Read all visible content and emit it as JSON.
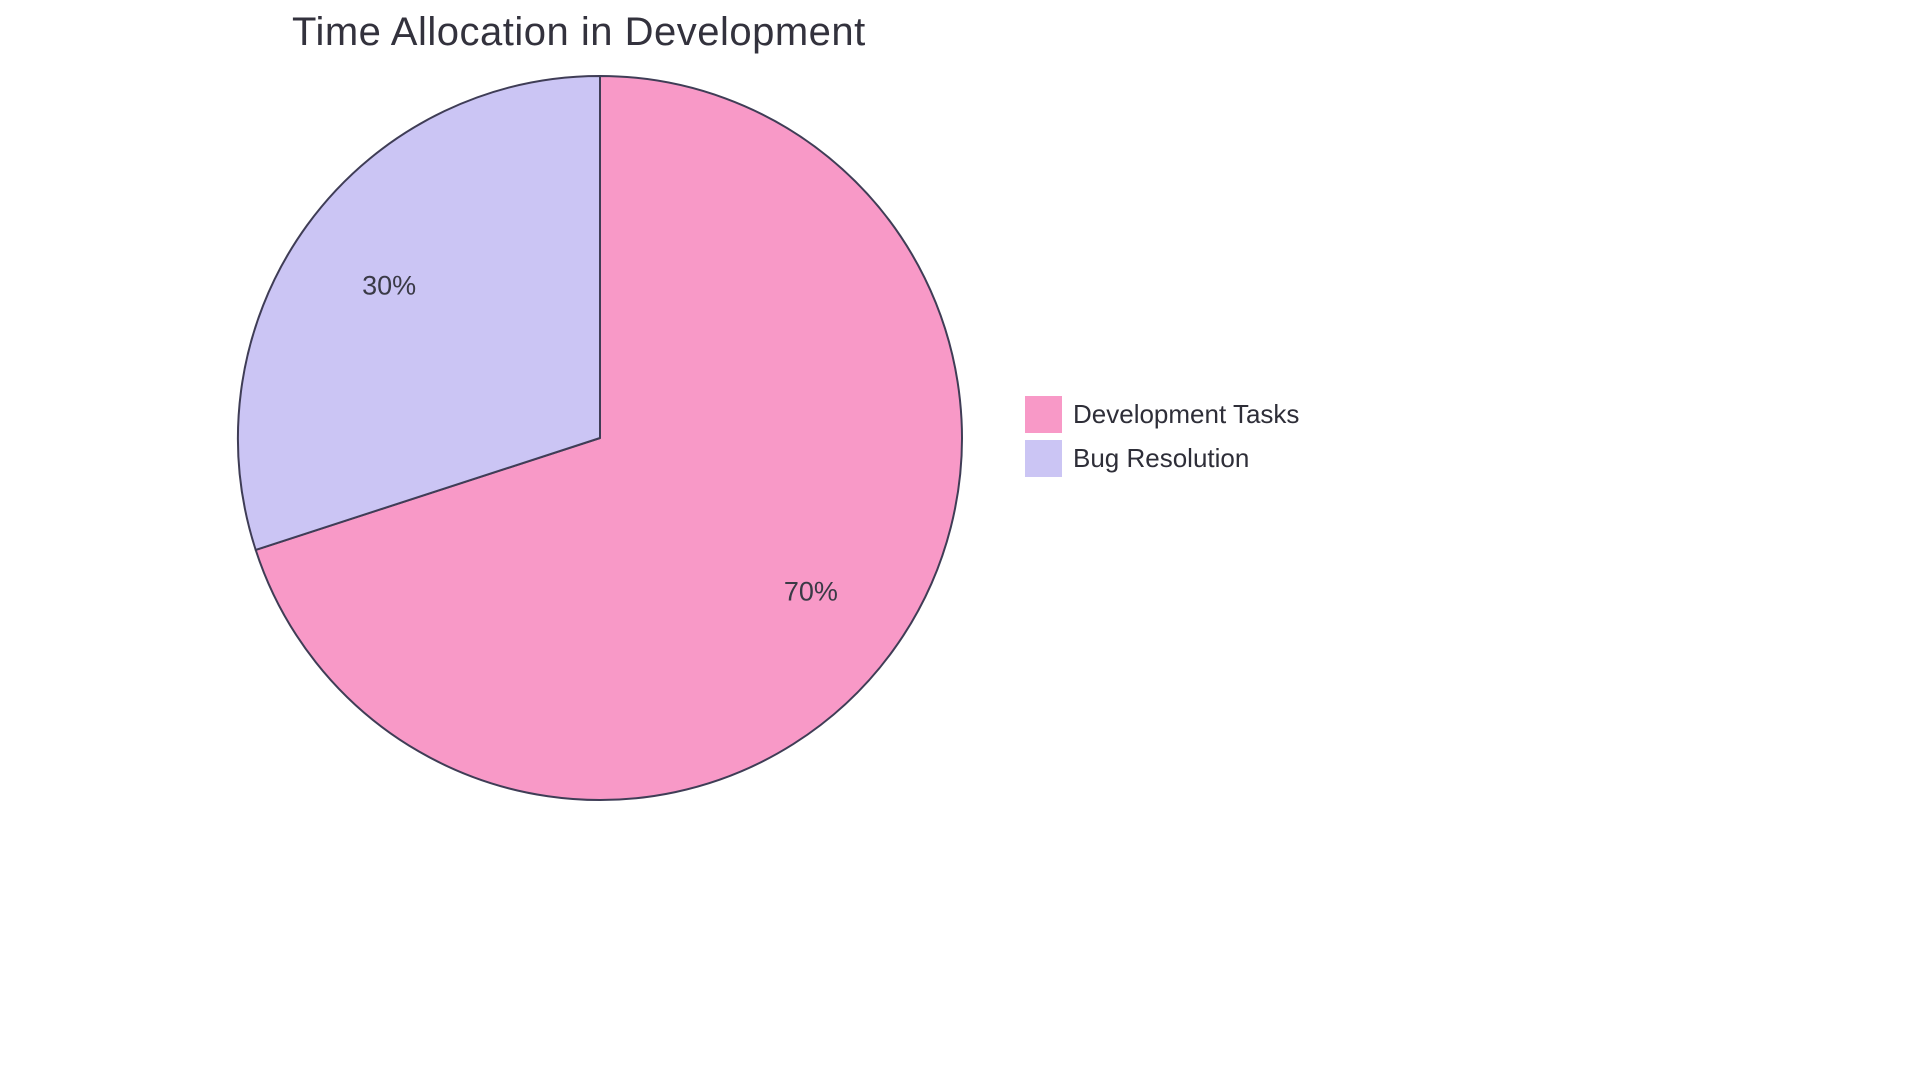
{
  "chart_data": {
    "type": "pie",
    "title": "Time Allocation in Development",
    "labels": [
      "Development Tasks",
      "Bug Resolution"
    ],
    "values": [
      70,
      30
    ],
    "value_labels": [
      "70%",
      "30%"
    ],
    "colors": [
      "#F899C7",
      "#CBC5F4"
    ],
    "stroke_color": "#3f3d56",
    "legend_position": "right",
    "start_angle_deg": 0,
    "direction": "clockwise"
  }
}
